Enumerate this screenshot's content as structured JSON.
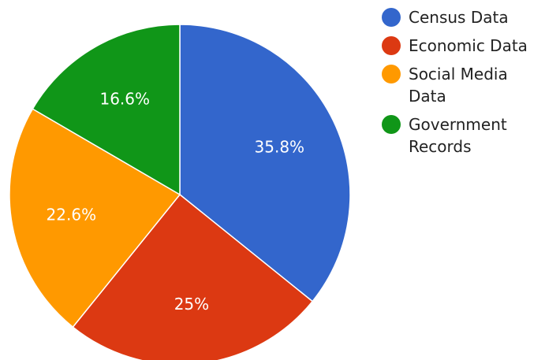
{
  "chart_data": {
    "type": "pie",
    "title": "",
    "start_angle_deg": 0,
    "direction": "clockwise",
    "legend_position": "right",
    "slices": [
      {
        "name": "Census Data",
        "value": 35.8,
        "label": "35.8%",
        "color": "#3366cc"
      },
      {
        "name": "Economic Data",
        "value": 25,
        "label": "25%",
        "color": "#dc3912"
      },
      {
        "name": "Social Media Data",
        "value": 22.6,
        "label": "22.6%",
        "color": "#ff9900"
      },
      {
        "name": "Government Records",
        "value": 16.6,
        "label": "16.6%",
        "color": "#109618"
      }
    ]
  }
}
